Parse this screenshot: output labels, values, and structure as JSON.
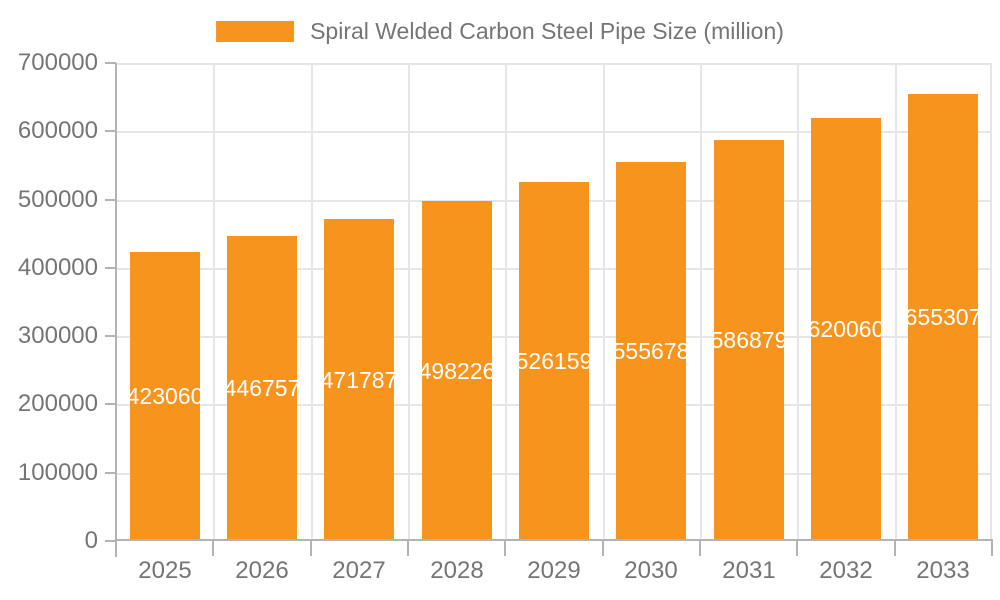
{
  "chart_data": {
    "type": "bar",
    "title": "Spiral Welded Carbon Steel Pipe Size (million)",
    "categories": [
      "2025",
      "2026",
      "2027",
      "2028",
      "2029",
      "2030",
      "2031",
      "2032",
      "2033"
    ],
    "series": [
      {
        "name": "Spiral Welded Carbon Steel Pipe Size (million)",
        "values": [
          423060,
          446757,
          471787,
          498226,
          526159,
          555678,
          586879,
          620060,
          655307
        ]
      }
    ],
    "xlabel": "",
    "ylabel": "",
    "ylim": [
      0,
      700000
    ],
    "ytick_interval": 100000,
    "ytick_labels": [
      "0",
      "100000",
      "200000",
      "300000",
      "400000",
      "500000",
      "600000",
      "700000"
    ],
    "grid": true,
    "legend_position": "top",
    "colors": {
      "bar": "#f7941e",
      "bar_value_label": "#ffffff",
      "axis_line": "#b3b3b3",
      "gridline": "#e6e6e6",
      "tick_label": "#757575"
    }
  }
}
